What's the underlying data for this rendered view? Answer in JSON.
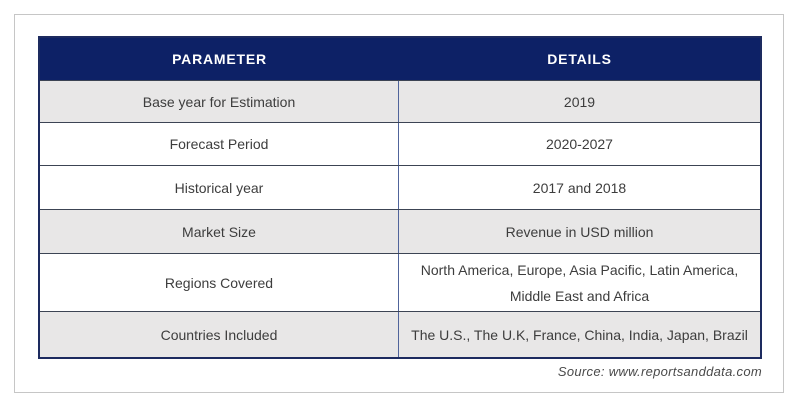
{
  "chart_data": {
    "type": "table",
    "columns": [
      "PARAMETER",
      "DETAILS"
    ],
    "rows": [
      [
        "Base year for Estimation",
        "2019"
      ],
      [
        "Forecast Period",
        "2020-2027"
      ],
      [
        "Historical year",
        "2017 and 2018"
      ],
      [
        "Market Size",
        "Revenue in USD million"
      ],
      [
        "Regions Covered",
        "North America, Europe, Asia Pacific, Latin America,\nMiddle East and Africa"
      ],
      [
        "Countries Included",
        "The U.S., The  U.K, France, China, India, Japan, Brazil"
      ]
    ],
    "legend_position": "none",
    "grid": true
  },
  "source_note": "Source: www.reportsanddata.com",
  "colors": {
    "header_bg": "#0d2166",
    "header_text": "#ffffff",
    "shaded_row_bg": "#e8e7e7",
    "plain_row_bg": "#ffffff",
    "cell_text": "#3d3d3d",
    "table_border": "#1d2b5f",
    "row_divider": "#3c4454",
    "column_divider": "#50649b",
    "frame_border": "#c6c6c6",
    "source_text": "#4a4a4a"
  }
}
